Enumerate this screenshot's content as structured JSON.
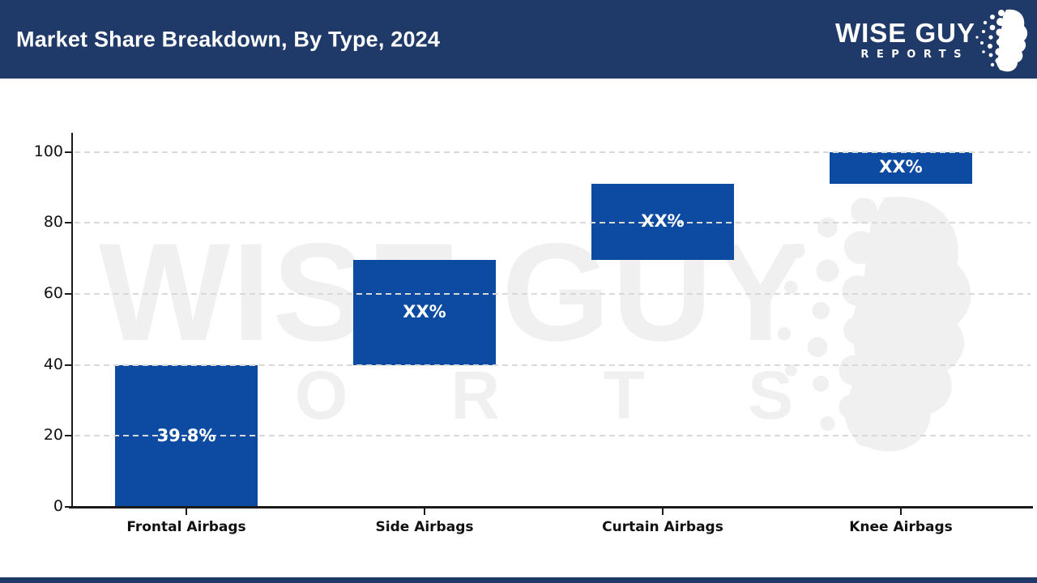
{
  "colors": {
    "header_bg": "#1f3a68",
    "footer_bg": "#1f3a68",
    "bar_blue": "#0d4aa1",
    "grid_gray": "#d9d9d9",
    "watermark_gray": "#f0f0f0"
  },
  "header": {
    "title": "Market Share Breakdown, By Type, 2024",
    "logo": {
      "wordmark": "WISE GUY",
      "subtext": "REPORTS"
    }
  },
  "watermark": {
    "line1": "WISE GUY",
    "line2": "P O R T S"
  },
  "chart_data": {
    "type": "bar",
    "variant": "waterfall",
    "title": "Market Share Breakdown, By Type, 2024",
    "xlabel": "",
    "ylabel": "",
    "categories": [
      "Frontal Airbags",
      "Side Airbags",
      "Curtain Airbags",
      "Knee Airbags"
    ],
    "segments": [
      {
        "category": "Frontal Airbags",
        "start": 0,
        "end": 39.8,
        "label": "39.8%"
      },
      {
        "category": "Side Airbags",
        "start": 39.8,
        "end": 69.5,
        "label": "XX%"
      },
      {
        "category": "Curtain Airbags",
        "start": 69.5,
        "end": 91,
        "label": "XX%"
      },
      {
        "category": "Knee Airbags",
        "start": 91,
        "end": 100,
        "label": "XX%"
      }
    ],
    "ylim": [
      0,
      100
    ],
    "yticks": [
      0,
      20,
      40,
      60,
      80,
      100
    ],
    "grid": {
      "axis": "y",
      "style": "dashed",
      "color": "#d9d9d9",
      "above_bars": true
    },
    "legend": "none",
    "bar_color": "#0d4aa1",
    "bar_label_color": "#ffffff"
  }
}
